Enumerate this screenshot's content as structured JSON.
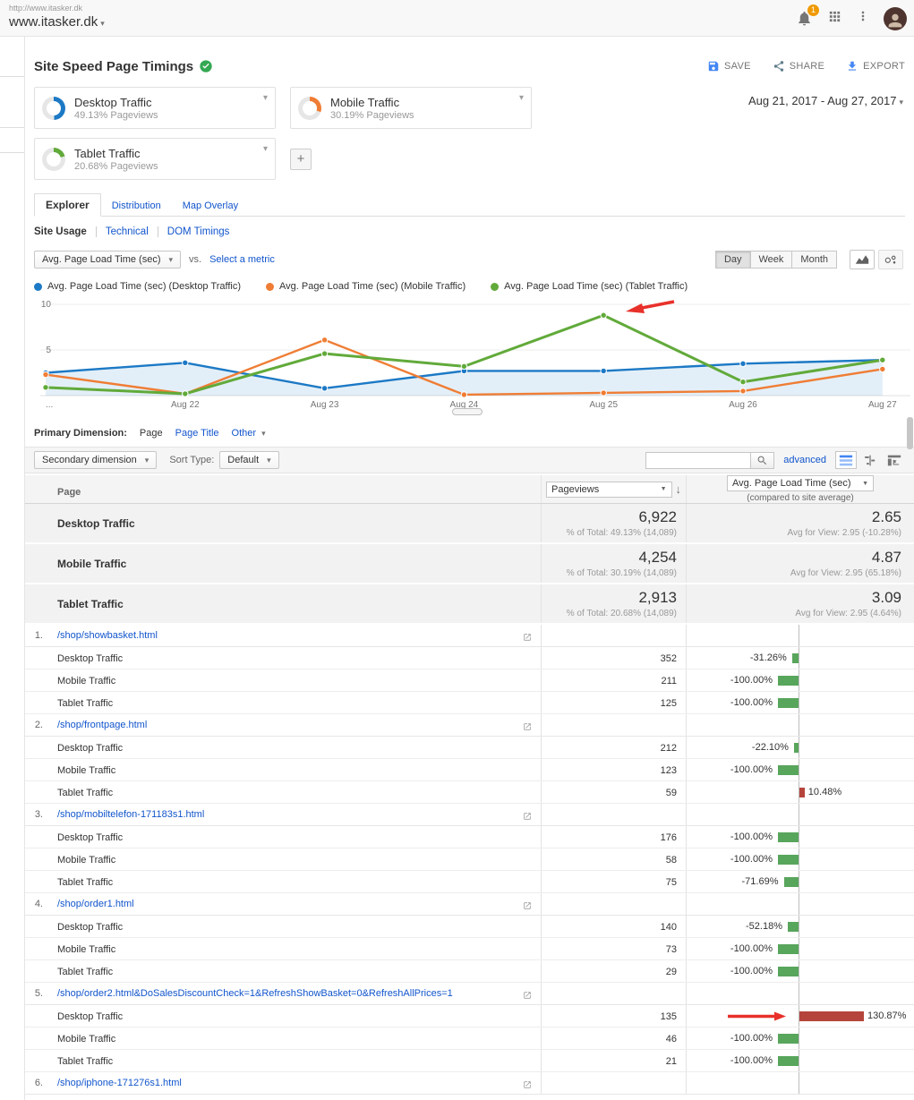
{
  "topbar": {
    "url": "http://www.itasker.dk",
    "account": "www.itasker.dk",
    "badge": "1"
  },
  "titlebar": {
    "title": "Site Speed Page Timings",
    "save": "SAVE",
    "share": "SHARE",
    "export": "EXPORT"
  },
  "date_range": "Aug 21, 2017 - Aug 27, 2017",
  "segments": [
    {
      "name": "Desktop Traffic",
      "detail": "49.13% Pageviews",
      "pct": 49.13,
      "color": "#1c79c5"
    },
    {
      "name": "Mobile Traffic",
      "detail": "30.19% Pageviews",
      "pct": 30.19,
      "color": "#ef7d35"
    },
    {
      "name": "Tablet Traffic",
      "detail": "20.68% Pageviews",
      "pct": 20.68,
      "color": "#61aa3a"
    }
  ],
  "tabs": {
    "explorer": "Explorer",
    "distribution": "Distribution",
    "map_overlay": "Map Overlay"
  },
  "subtabs": {
    "site_usage": "Site Usage",
    "technical": "Technical",
    "dom_timings": "DOM Timings"
  },
  "metricbar": {
    "metric": "Avg. Page Load Time (sec)",
    "vs": "vs.",
    "select_metric": "Select a metric",
    "day": "Day",
    "week": "Week",
    "month": "Month"
  },
  "chart_data": {
    "type": "line",
    "x": [
      "...",
      "Aug 22",
      "Aug 23",
      "Aug 24",
      "Aug 25",
      "Aug 26",
      "Aug 27"
    ],
    "series": [
      {
        "name": "Avg. Page Load Time (sec) (Desktop Traffic)",
        "color": "#1c79c5",
        "area": true,
        "values": [
          2.5,
          3.6,
          0.8,
          2.7,
          2.7,
          3.5,
          3.9
        ]
      },
      {
        "name": "Avg. Page Load Time (sec) (Mobile Traffic)",
        "color": "#ef7d35",
        "values": [
          2.3,
          0.2,
          6.1,
          0.1,
          0.3,
          0.5,
          2.9
        ]
      },
      {
        "name": "Avg. Page Load Time (sec) (Tablet Traffic)",
        "color": "#61aa3a",
        "values": [
          0.9,
          0.2,
          4.6,
          3.2,
          8.8,
          1.5,
          3.9
        ]
      }
    ],
    "ylim": [
      0,
      10
    ],
    "yticks": [
      5,
      10
    ],
    "grid": true,
    "legend_position": "top",
    "annotation": "red arrow pointing at Tablet Traffic peak on Aug 25"
  },
  "primary_dimension": {
    "label": "Primary Dimension:",
    "page": "Page",
    "page_title": "Page Title",
    "other": "Other"
  },
  "toolbar": {
    "secondary_dimension": "Secondary dimension",
    "sort_type_label": "Sort Type:",
    "sort_type_value": "Default",
    "advanced": "advanced",
    "search_value": ""
  },
  "table": {
    "col_page": "Page",
    "col_pageviews": "Pageviews",
    "col_metric": "Avg. Page Load Time (sec)",
    "col_metric_sub": "(compared to site average)",
    "summary_rows": [
      {
        "label": "Desktop Traffic",
        "pageviews": "6,922",
        "pv_sub": "% of Total: 49.13% (14,089)",
        "metric": "2.65",
        "metric_sub": "Avg for View: 2.95 (-10.28%)"
      },
      {
        "label": "Mobile Traffic",
        "pageviews": "4,254",
        "pv_sub": "% of Total: 30.19% (14,089)",
        "metric": "4.87",
        "metric_sub": "Avg for View: 2.95 (65.18%)"
      },
      {
        "label": "Tablet Traffic",
        "pageviews": "2,913",
        "pv_sub": "% of Total: 20.68% (14,089)",
        "metric": "3.09",
        "metric_sub": "Avg for View: 2.95 (4.64%)"
      }
    ],
    "groups": [
      {
        "index": "1.",
        "url": "/shop/showbasket.html",
        "rows": [
          {
            "label": "Desktop Traffic",
            "pageviews": "352",
            "pct": -31.26,
            "pct_label": "-31.26%"
          },
          {
            "label": "Mobile Traffic",
            "pageviews": "211",
            "pct": -100.0,
            "pct_label": "-100.00%"
          },
          {
            "label": "Tablet Traffic",
            "pageviews": "125",
            "pct": -100.0,
            "pct_label": "-100.00%"
          }
        ]
      },
      {
        "index": "2.",
        "url": "/shop/frontpage.html",
        "rows": [
          {
            "label": "Desktop Traffic",
            "pageviews": "212",
            "pct": -22.1,
            "pct_label": "-22.10%"
          },
          {
            "label": "Mobile Traffic",
            "pageviews": "123",
            "pct": -100.0,
            "pct_label": "-100.00%"
          },
          {
            "label": "Tablet Traffic",
            "pageviews": "59",
            "pct": 10.48,
            "pct_label": "10.48%"
          }
        ]
      },
      {
        "index": "3.",
        "url": "/shop/mobiltelefon-171183s1.html",
        "rows": [
          {
            "label": "Desktop Traffic",
            "pageviews": "176",
            "pct": -100.0,
            "pct_label": "-100.00%"
          },
          {
            "label": "Mobile Traffic",
            "pageviews": "58",
            "pct": -100.0,
            "pct_label": "-100.00%"
          },
          {
            "label": "Tablet Traffic",
            "pageviews": "75",
            "pct": -71.69,
            "pct_label": "-71.69%"
          }
        ]
      },
      {
        "index": "4.",
        "url": "/shop/order1.html",
        "rows": [
          {
            "label": "Desktop Traffic",
            "pageviews": "140",
            "pct": -52.18,
            "pct_label": "-52.18%"
          },
          {
            "label": "Mobile Traffic",
            "pageviews": "73",
            "pct": -100.0,
            "pct_label": "-100.00%"
          },
          {
            "label": "Tablet Traffic",
            "pageviews": "29",
            "pct": -100.0,
            "pct_label": "-100.00%"
          }
        ]
      },
      {
        "index": "5.",
        "url": "/shop/order2.html&DoSalesDiscountCheck=1&RefreshShowBasket=0&RefreshAllPrices=1",
        "rows": [
          {
            "label": "Desktop Traffic",
            "pageviews": "135",
            "pct": 130.87,
            "pct_label": "130.87%",
            "arrow": true
          },
          {
            "label": "Mobile Traffic",
            "pageviews": "46",
            "pct": -100.0,
            "pct_label": "-100.00%"
          },
          {
            "label": "Tablet Traffic",
            "pageviews": "21",
            "pct": -100.0,
            "pct_label": "-100.00%"
          }
        ]
      },
      {
        "index": "6.",
        "url": "/shop/iphone-171276s1.html",
        "rows": []
      }
    ]
  },
  "colors": {
    "bar_negative": "#58a55c",
    "bar_positive": "#b5443c",
    "annotation_red": "#e8312a",
    "link_blue": "#1155cc"
  },
  "icons": {
    "bell": "notification-bell",
    "apps": "grid-3x3",
    "more": "kebab-dots",
    "avatar": "user-photo",
    "verified": "green-check-badge",
    "save": "floppy-disk",
    "share": "share-nodes",
    "export": "download-arrow",
    "search": "magnifier",
    "external": "open-in-new",
    "sort": "down-arrow"
  }
}
